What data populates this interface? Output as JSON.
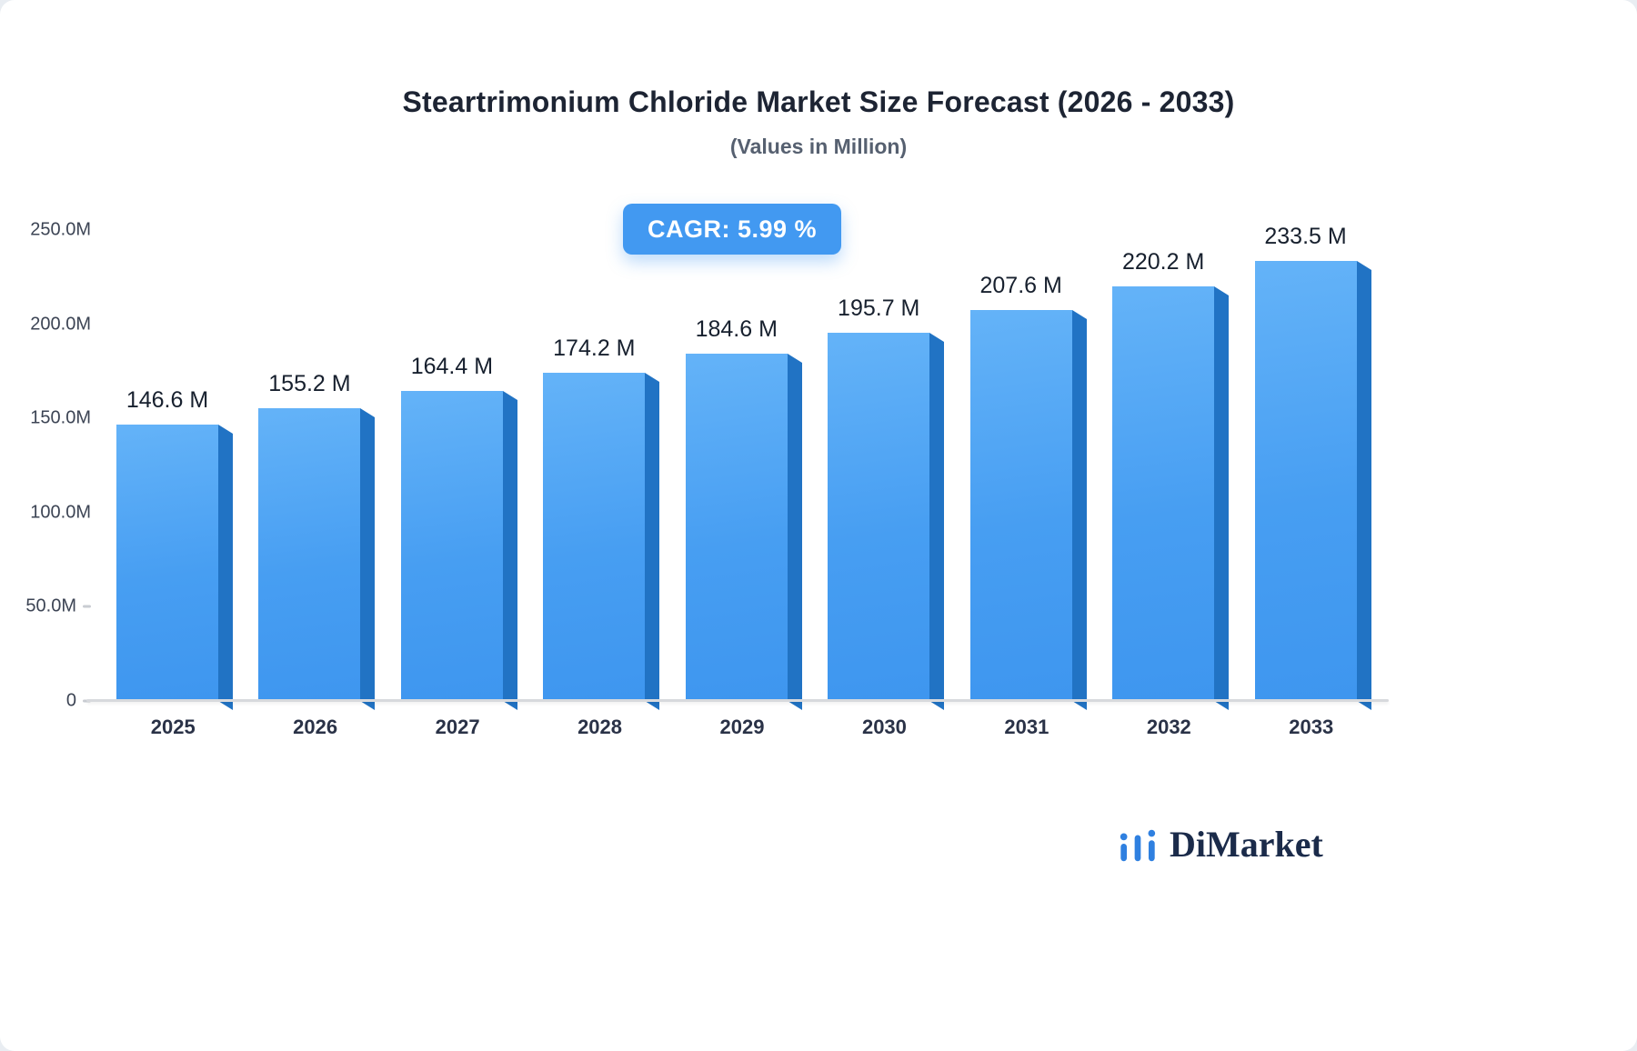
{
  "title": "Steartrimonium Chloride Market Size Forecast (2026 - 2033)",
  "subtitle": "(Values in Million)",
  "badge": {
    "label": "CAGR: 5.99 %"
  },
  "brand": {
    "name": "DiMarket",
    "icon": "bar-chart-logo-icon"
  },
  "colors": {
    "bar_face_top": "#64b3f8",
    "bar_face_bottom": "#3e96ef",
    "bar_side": "#2173c4",
    "badge_bg": "#4299f1",
    "title_text": "#1d2433",
    "subtitle_text": "#566070",
    "axis_line": "#d7d9dd",
    "brand_blue": "#2f80e0"
  },
  "chart_data": {
    "type": "bar",
    "title": "Steartrimonium Chloride Market Size Forecast (2026 - 2033)",
    "subtitle": "(Values in Million)",
    "categories": [
      "2025",
      "2026",
      "2027",
      "2028",
      "2029",
      "2030",
      "2031",
      "2032",
      "2033"
    ],
    "values": [
      146.6,
      155.2,
      164.4,
      174.2,
      184.6,
      195.7,
      207.6,
      220.2,
      233.5
    ],
    "value_labels": [
      "146.6 M",
      "155.2 M",
      "164.4 M",
      "174.2 M",
      "184.6 M",
      "195.7 M",
      "207.6 M",
      "220.2 M",
      "233.5 M"
    ],
    "xlabel": "",
    "ylabel": "",
    "ylim": [
      0,
      250
    ],
    "yticks": [
      "250.0M",
      "200.0M",
      "150.0M",
      "100.0M",
      "50.0M",
      "0"
    ],
    "ytick_dash": [
      false,
      false,
      false,
      false,
      true,
      true
    ],
    "grid": false,
    "legend": false,
    "annotation": "CAGR: 5.99 %"
  }
}
